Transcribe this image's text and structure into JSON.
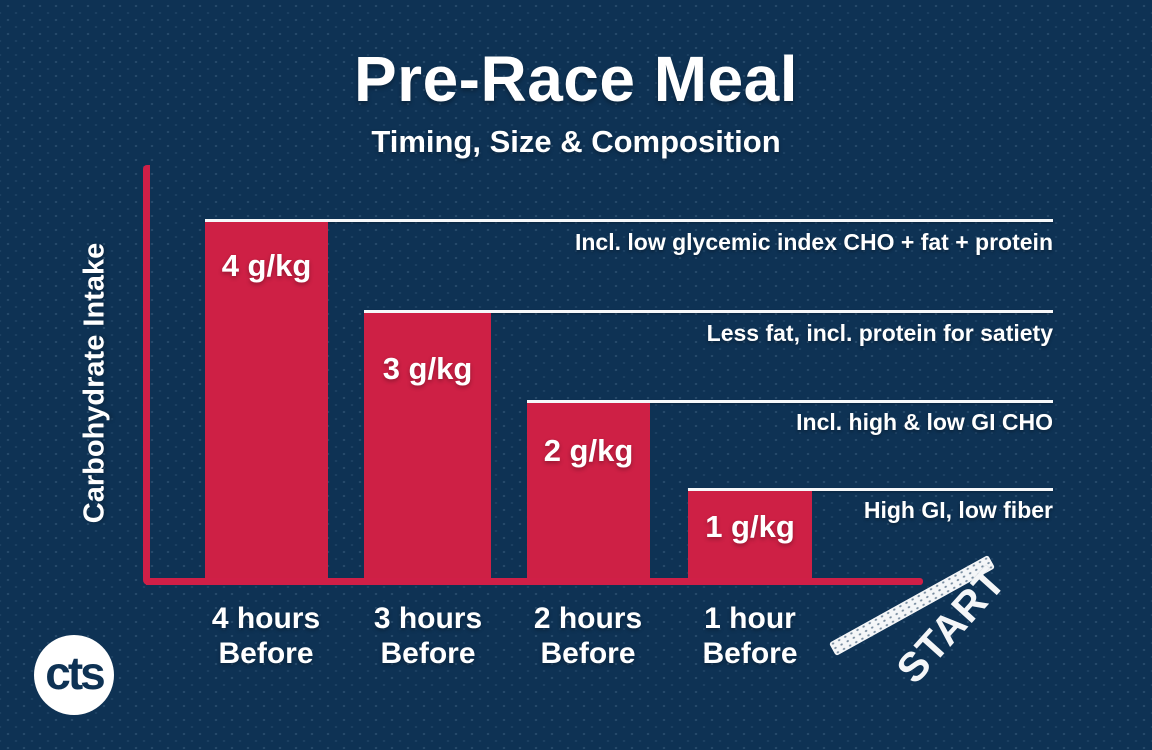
{
  "poster": {
    "title": "Pre-Race Meal",
    "subtitle": "Timing, Size & Composition",
    "ylabel": "Carbohydrate Intake",
    "start_label": "START",
    "logo_text": "cts"
  },
  "colors": {
    "background_navy": "#0e3254",
    "bar_red": "#ce2045",
    "axis_red": "#d01f47",
    "text_white": "#ffffff"
  },
  "chart_data": {
    "type": "bar",
    "title": "Pre-Race Meal",
    "subtitle": "Timing, Size & Composition",
    "xlabel": "",
    "ylabel": "Carbohydrate Intake",
    "unit": "g/kg",
    "grid": false,
    "categories": [
      "4 hours Before",
      "3 hours Before",
      "2 hours Before",
      "1 hour Before"
    ],
    "values": [
      4,
      3,
      2,
      1
    ],
    "bars": [
      {
        "category": "4 hours Before",
        "value": 4,
        "value_label": "4 g/kg",
        "annotation": "Incl. low glycemic index CHO + fat + protein"
      },
      {
        "category": "3 hours Before",
        "value": 3,
        "value_label": "3 g/kg",
        "annotation": "Less fat, incl. protein for satiety"
      },
      {
        "category": "2 hours Before",
        "value": 2,
        "value_label": "2 g/kg",
        "annotation": "Incl. high & low GI CHO"
      },
      {
        "category": "1 hour Before",
        "value": 1,
        "value_label": "1 g/kg",
        "annotation": "High GI, low fiber"
      }
    ]
  }
}
